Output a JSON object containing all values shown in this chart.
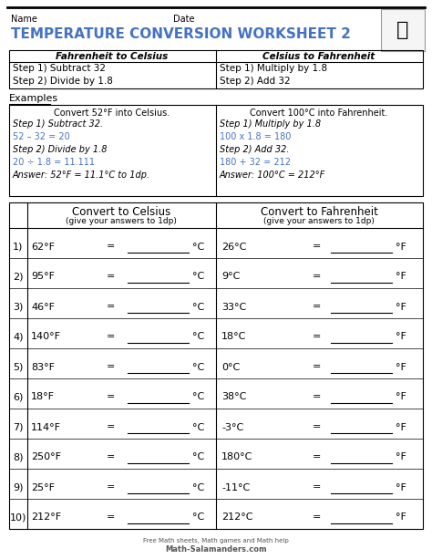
{
  "title": "TEMPERATURE CONVERSION WORKSHEET 2",
  "title_color": "#4472C4",
  "bg_color": "#FFFFFF",
  "name_label": "Name",
  "date_label": "Date",
  "formula_headers": [
    "Fahrenheit to Celsius",
    "Celsius to Fahrenheit"
  ],
  "formula_rows": [
    [
      "Step 1) Subtract 32",
      "Step 1) Multiply by 1.8"
    ],
    [
      "Step 2) Divide by 1.8",
      "Step 2) Add 32"
    ]
  ],
  "examples_label": "Examples",
  "example_left_header": "Convert 52°F into Celsius.",
  "example_left_lines": [
    {
      "text": "Step 1) Subtract 32.",
      "color": "#000000",
      "italic": true
    },
    {
      "text": "52 – 32 = 20",
      "color": "#4472C4",
      "italic": false
    },
    {
      "text": "Step 2) Divide by 1.8",
      "color": "#000000",
      "italic": true
    },
    {
      "text": "20 ÷ 1.8 = 11.111",
      "color": "#4472C4",
      "italic": false
    },
    {
      "text": "Answer: 52°F = 11.1°C to 1dp.",
      "color": "#000000",
      "italic": true
    }
  ],
  "example_right_header": "Convert 100°C into Fahrenheit.",
  "example_right_lines": [
    {
      "text": "Step 1) Multiply by 1.8",
      "color": "#000000",
      "italic": true
    },
    {
      "text": "100 x 1.8 = 180",
      "color": "#4472C4",
      "italic": false
    },
    {
      "text": "Step 2) Add 32.",
      "color": "#000000",
      "italic": true
    },
    {
      "text": "180 + 32 = 212",
      "color": "#4472C4",
      "italic": false
    },
    {
      "text": "Answer: 100°C = 212°F",
      "color": "#000000",
      "italic": true
    }
  ],
  "practice_left_header": "Convert to Celsius",
  "practice_left_sub": "(give your answers to 1dp)",
  "practice_right_header": "Convert to Fahrenheit",
  "practice_right_sub": "(give your answers to 1dp)",
  "practice_left": [
    "62°F",
    "95°F",
    "46°F",
    "140°F",
    "83°F",
    "18°F",
    "114°F",
    "250°F",
    "25°F",
    "212°F"
  ],
  "practice_right": [
    "26°C",
    "9°C",
    "33°C",
    "18°C",
    "0°C",
    "38°C",
    "-3°C",
    "180°C",
    "-11°C",
    "212°C"
  ],
  "left_unit": "°C",
  "right_unit": "°F",
  "footer_text": "Free Math sheets, Math games and Math help",
  "footer_text2": "Math-Salamanders.com"
}
